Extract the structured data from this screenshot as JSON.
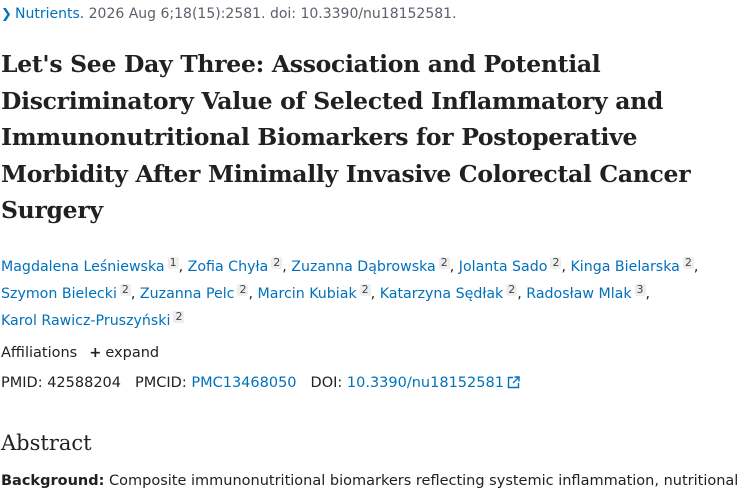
{
  "citation": {
    "journal": "Nutrients.",
    "details": " 2026 Aug 6;18(15):2581. doi: 10.3390/nu18152581."
  },
  "title_lines": [
    "Let's See Day Three: Association and Potential",
    "Discriminatory Value of Selected Inflammatory and",
    "Immunonutritional Biomarkers for Postoperative",
    "Morbidity After Minimally Invasive Colorectal Cancer",
    "Surgery"
  ],
  "authors": [
    {
      "name": "Magdalena Leśniewska",
      "aff": "1"
    },
    {
      "name": "Zofia Chyła",
      "aff": "2"
    },
    {
      "name": "Zuzanna Dąbrowska",
      "aff": "2"
    },
    {
      "name": "Jolanta Sado",
      "aff": "2"
    },
    {
      "name": "Kinga Bielarska",
      "aff": "2"
    },
    {
      "name": "Szymon Bielecki",
      "aff": "2"
    },
    {
      "name": "Zuzanna Pelc",
      "aff": "2"
    },
    {
      "name": "Marcin Kubiak",
      "aff": "2"
    },
    {
      "name": "Katarzyna Sędłak",
      "aff": "2"
    },
    {
      "name": "Radosław Mlak",
      "aff": "3"
    },
    {
      "name": "Karol Rawicz-Pruszyński",
      "aff": "2"
    }
  ],
  "affiliations": {
    "label": "Affiliations",
    "plus": "+",
    "expand": "expand"
  },
  "ids": {
    "pmid_label": "PMID:",
    "pmid": "42588204",
    "pmcid_label": "PMCID:",
    "pmcid": "PMC13468050",
    "doi_label": "DOI:",
    "doi": "10.3390/nu18152581"
  },
  "abstract": {
    "heading": "Abstract",
    "background_label": "Background:",
    "background_text": " Composite immunonutritional biomarkers reflecting systemic inflammation, nutritional"
  },
  "icons": {
    "citation_chevron": "chevron-right-icon",
    "doi_link": "external-link-icon"
  },
  "colors": {
    "link": "#0071bc",
    "text": "#212121"
  }
}
